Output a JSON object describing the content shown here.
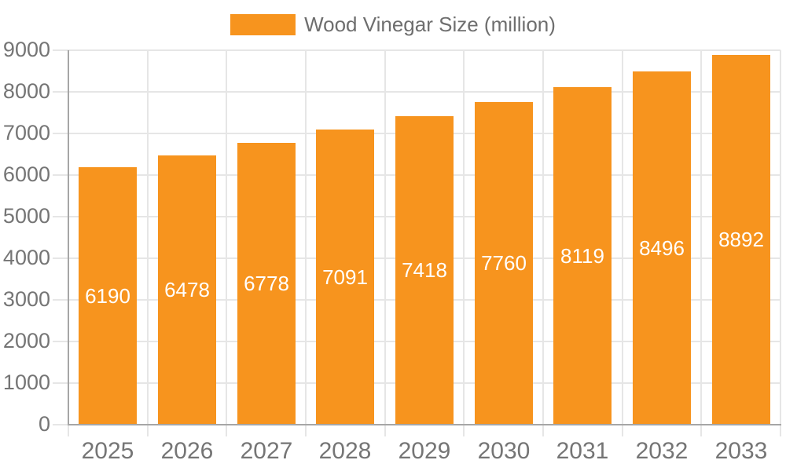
{
  "chart_data": {
    "type": "bar",
    "title": "",
    "legend": {
      "label": "Wood Vinegar Size (million)",
      "position": "top"
    },
    "categories": [
      "2025",
      "2026",
      "2027",
      "2028",
      "2029",
      "2030",
      "2031",
      "2032",
      "2033"
    ],
    "series": [
      {
        "name": "Wood Vinegar Size (million)",
        "color": "#F7941E",
        "values": [
          6190,
          6478,
          6778,
          7091,
          7418,
          7760,
          8119,
          8496,
          8892
        ]
      }
    ],
    "xlabel": "",
    "ylabel": "",
    "ylim": [
      0,
      9000
    ],
    "yticks": [
      0,
      1000,
      2000,
      3000,
      4000,
      5000,
      6000,
      7000,
      8000,
      9000
    ],
    "grid": true,
    "data_labels": {
      "visible": true,
      "position": "center-of-bar"
    }
  },
  "colors": {
    "bar": "#F7941E",
    "bar_label": "#FFFFFF",
    "gridline": "#E6E6E6",
    "axis_line": "#A6A6A6",
    "axis_label": "#757575",
    "legend_text": "#6E6E6E",
    "background": "#FFFFFF"
  }
}
